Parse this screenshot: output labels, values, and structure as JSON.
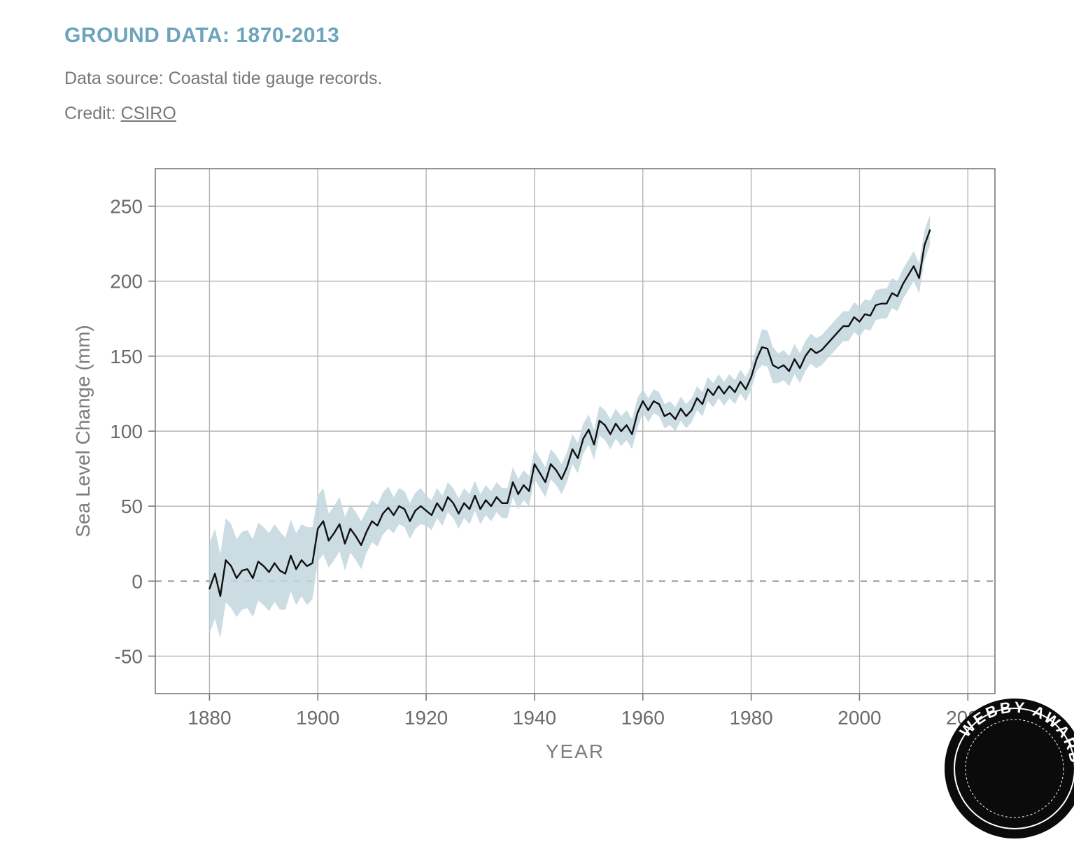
{
  "header": {
    "title": "GROUND DATA: 1870-2013",
    "title_color": "#6ca4bb",
    "title_fontsize": 30,
    "source_line": "Data source: Coastal tide gauge records.",
    "credit_prefix": "Credit: ",
    "credit_link": "CSIRO",
    "meta_color": "#777777",
    "meta_fontsize": 25
  },
  "chart": {
    "type": "line",
    "x_label": "YEAR",
    "y_label": "Sea Level Change (mm)",
    "label_fontsize": 28,
    "tick_fontsize": 28,
    "background_color": "#ffffff",
    "grid_color": "#b3b3b3",
    "axis_color": "#7a7a7a",
    "zero_line_color": "#8f8f8f",
    "zero_line_dash": "9 9",
    "line_color": "#111111",
    "line_width": 2.4,
    "band_color": "#c2d6de",
    "band_opacity": 0.85,
    "xlim": [
      1870,
      2025
    ],
    "ylim": [
      -75,
      275
    ],
    "xticks": [
      1880,
      1900,
      1920,
      1940,
      1960,
      1980,
      2000,
      2020
    ],
    "yticks": [
      -50,
      0,
      50,
      100,
      150,
      200,
      250
    ],
    "series": {
      "x": [
        1880,
        1881,
        1882,
        1883,
        1884,
        1885,
        1886,
        1887,
        1888,
        1889,
        1890,
        1891,
        1892,
        1893,
        1894,
        1895,
        1896,
        1897,
        1898,
        1899,
        1900,
        1901,
        1902,
        1903,
        1904,
        1905,
        1906,
        1907,
        1908,
        1909,
        1910,
        1911,
        1912,
        1913,
        1914,
        1915,
        1916,
        1917,
        1918,
        1919,
        1920,
        1921,
        1922,
        1923,
        1924,
        1925,
        1926,
        1927,
        1928,
        1929,
        1930,
        1931,
        1932,
        1933,
        1934,
        1935,
        1936,
        1937,
        1938,
        1939,
        1940,
        1941,
        1942,
        1943,
        1944,
        1945,
        1946,
        1947,
        1948,
        1949,
        1950,
        1951,
        1952,
        1953,
        1954,
        1955,
        1956,
        1957,
        1958,
        1959,
        1960,
        1961,
        1962,
        1963,
        1964,
        1965,
        1966,
        1967,
        1968,
        1969,
        1970,
        1971,
        1972,
        1973,
        1974,
        1975,
        1976,
        1977,
        1978,
        1979,
        1980,
        1981,
        1982,
        1983,
        1984,
        1985,
        1986,
        1987,
        1988,
        1989,
        1990,
        1991,
        1992,
        1993,
        1994,
        1995,
        1996,
        1997,
        1998,
        1999,
        2000,
        2001,
        2002,
        2003,
        2004,
        2005,
        2006,
        2007,
        2008,
        2009,
        2010,
        2011,
        2012,
        2013
      ],
      "y": [
        -5,
        5,
        -10,
        14,
        10,
        2,
        7,
        8,
        2,
        13,
        10,
        6,
        12,
        7,
        5,
        17,
        8,
        14,
        10,
        12,
        35,
        40,
        27,
        32,
        38,
        25,
        35,
        30,
        24,
        33,
        40,
        37,
        45,
        49,
        44,
        50,
        48,
        40,
        47,
        50,
        47,
        44,
        52,
        47,
        56,
        52,
        45,
        52,
        48,
        57,
        48,
        54,
        50,
        56,
        52,
        52,
        66,
        58,
        64,
        60,
        78,
        72,
        66,
        78,
        74,
        68,
        76,
        88,
        82,
        95,
        101,
        91,
        107,
        104,
        98,
        105,
        100,
        104,
        98,
        112,
        120,
        114,
        120,
        118,
        110,
        112,
        108,
        115,
        110,
        114,
        122,
        118,
        128,
        124,
        130,
        125,
        130,
        126,
        133,
        128,
        136,
        148,
        156,
        155,
        144,
        142,
        144,
        140,
        148,
        142,
        150,
        155,
        152,
        154,
        158,
        162,
        166,
        170,
        170,
        176,
        173,
        178,
        177,
        184,
        185,
        185,
        192,
        190,
        198,
        204,
        210,
        202,
        224,
        234
      ],
      "err": [
        30,
        30,
        28,
        28,
        28,
        26,
        26,
        26,
        26,
        26,
        26,
        26,
        26,
        26,
        24,
        24,
        24,
        24,
        26,
        24,
        22,
        22,
        18,
        18,
        18,
        18,
        16,
        16,
        16,
        14,
        14,
        14,
        14,
        14,
        12,
        12,
        12,
        12,
        12,
        12,
        10,
        10,
        10,
        10,
        10,
        10,
        10,
        10,
        10,
        10,
        10,
        10,
        10,
        10,
        10,
        10,
        10,
        10,
        10,
        10,
        10,
        10,
        10,
        10,
        10,
        10,
        10,
        10,
        10,
        10,
        10,
        10,
        10,
        10,
        10,
        10,
        10,
        10,
        10,
        10,
        8,
        8,
        8,
        8,
        8,
        8,
        8,
        8,
        8,
        8,
        8,
        8,
        8,
        8,
        8,
        8,
        8,
        8,
        8,
        8,
        8,
        8,
        12,
        12,
        12,
        10,
        10,
        10,
        10,
        10,
        10,
        10,
        10,
        10,
        10,
        10,
        10,
        10,
        10,
        10,
        10,
        10,
        10,
        10,
        10,
        10,
        10,
        10,
        10,
        10,
        10,
        10,
        10,
        10
      ]
    }
  },
  "badge": {
    "text_top": "WEBBY",
    "text_right": "AWARD",
    "bg_color": "#0b0b0b",
    "fg_color": "#ffffff"
  }
}
